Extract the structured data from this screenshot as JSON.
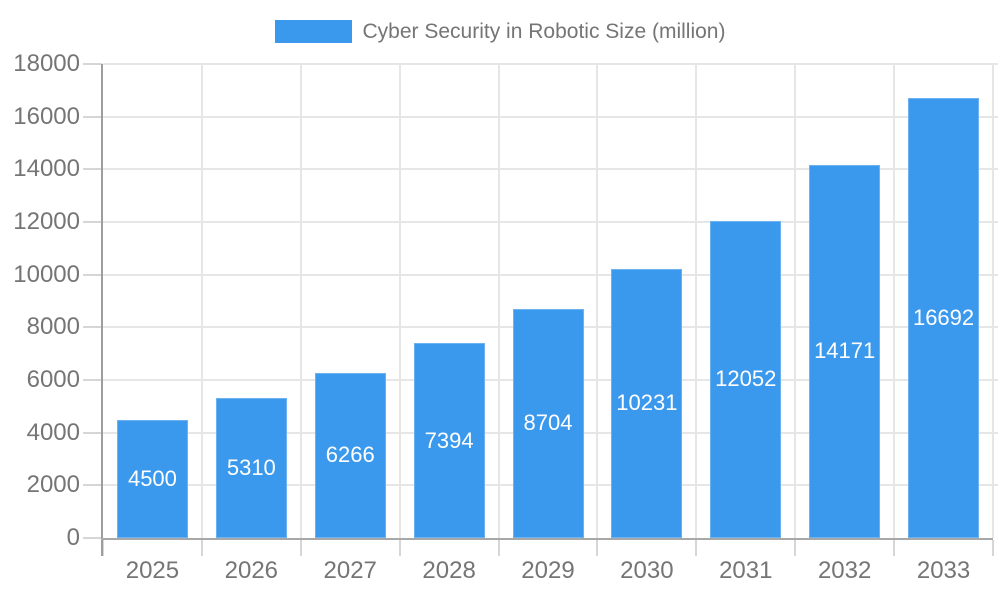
{
  "chart_data": {
    "type": "bar",
    "title": "Cyber Security in Robotic Size (million)",
    "legend_position": "top",
    "categories": [
      "2025",
      "2026",
      "2027",
      "2028",
      "2029",
      "2030",
      "2031",
      "2032",
      "2033"
    ],
    "series": [
      {
        "name": "Cyber Security in Robotic Size (million)",
        "values": [
          4500,
          5310,
          6266,
          7394,
          8704,
          10231,
          12052,
          14171,
          16692
        ]
      }
    ],
    "value_labels_shown": true,
    "value_label_position": "inside-center",
    "xlabel": "",
    "ylabel": "",
    "ylim": [
      0,
      18000
    ],
    "ytick_step": 2000,
    "yticks": [
      0,
      2000,
      4000,
      6000,
      8000,
      10000,
      12000,
      14000,
      16000,
      18000
    ],
    "grid": true
  },
  "colors": {
    "bar": "#3b99ed",
    "grid": "#e6e6e6",
    "axis": "#9e9e9e",
    "tick": "#d6d6d6",
    "text": "#757575",
    "value_label": "#ffffff",
    "background": "#ffffff"
  }
}
